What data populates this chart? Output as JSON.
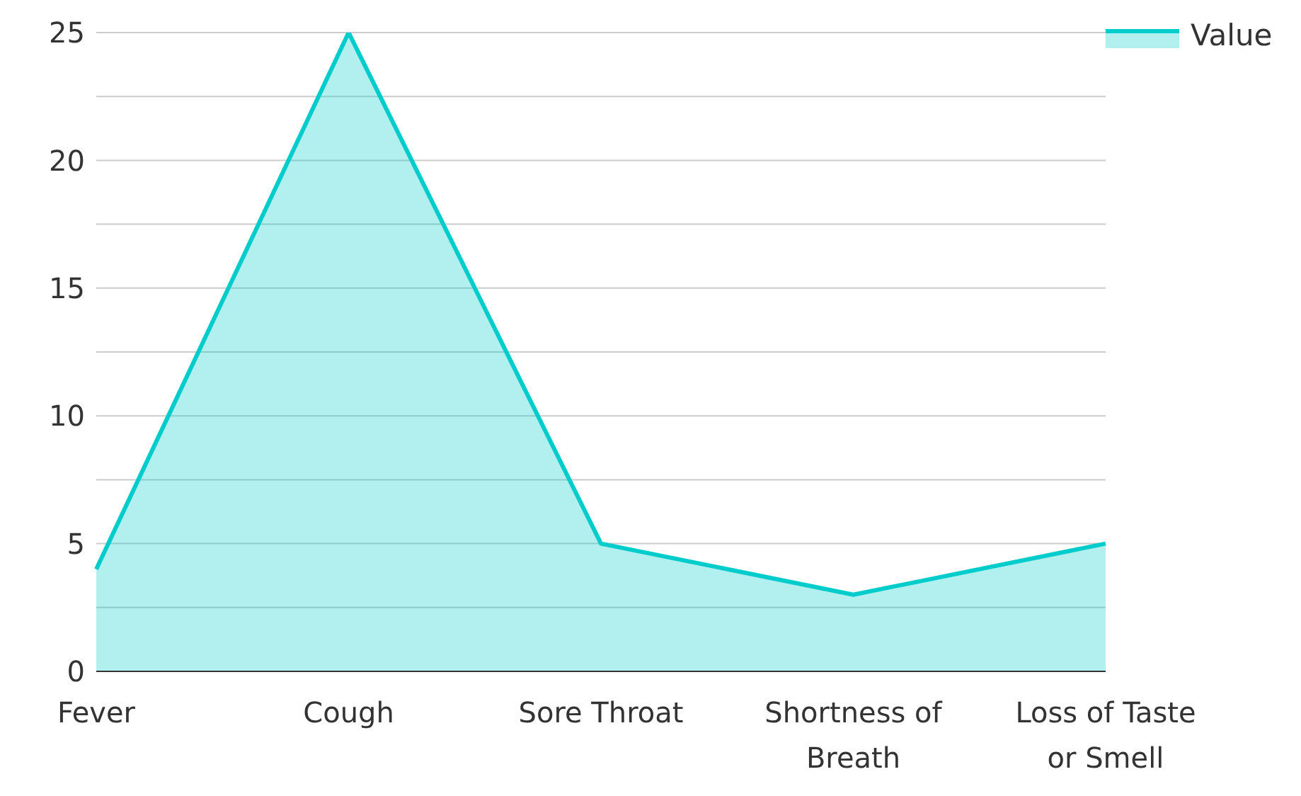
{
  "chart_data": {
    "type": "area",
    "categories": [
      "Fever",
      "Cough",
      "Sore Throat",
      "Shortness of Breath",
      "Loss of Taste or Smell"
    ],
    "series": [
      {
        "name": "Value",
        "color": "#00cccc",
        "values": [
          4,
          25,
          5,
          3,
          5
        ]
      }
    ],
    "ylim": [
      0,
      25
    ],
    "yticks": [
      0,
      {
        "value": 2.5,
        "label": null
      },
      5,
      {
        "value": 7.5,
        "label": null
      },
      10,
      {
        "value": 12.5,
        "label": null
      },
      15,
      {
        "value": 17.5,
        "label": null
      },
      20,
      {
        "value": 22.5,
        "label": null
      },
      25
    ],
    "grid": "y",
    "legend": "top right"
  }
}
